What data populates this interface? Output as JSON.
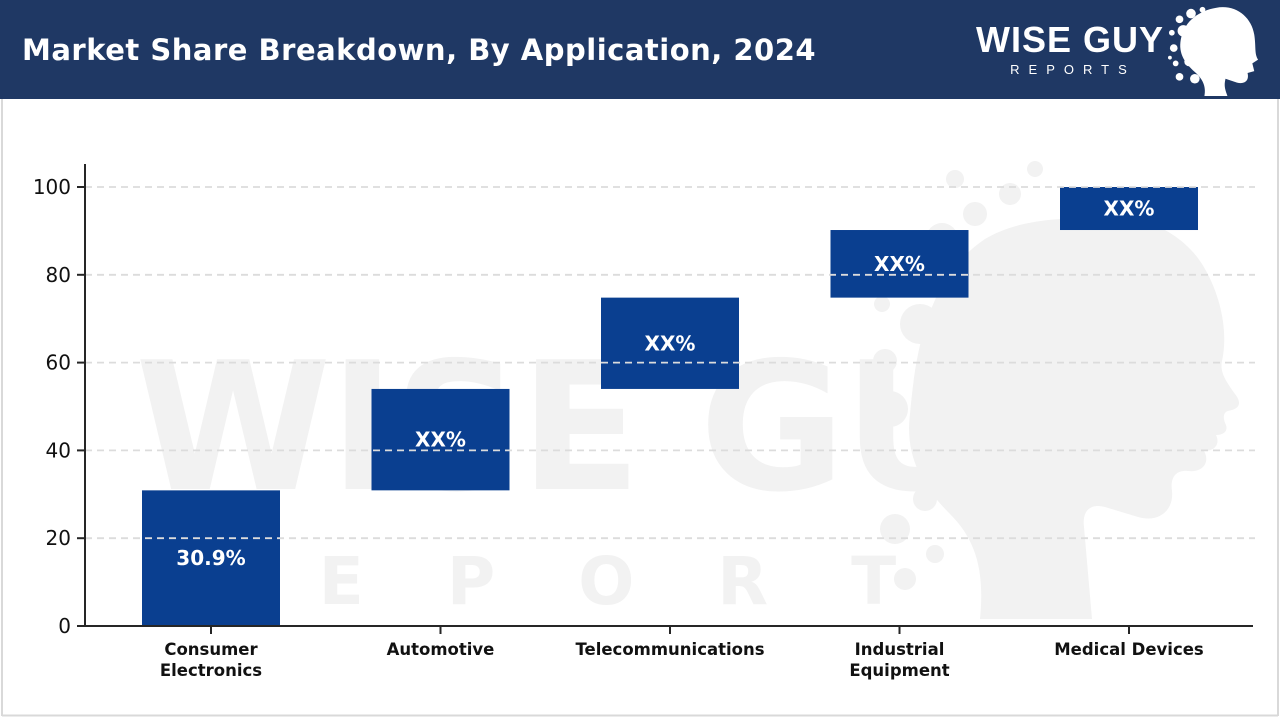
{
  "header": {
    "title": "Market Share Breakdown, By Application, 2024",
    "logo": {
      "line1": "WISE GUY",
      "line2": "REPORTS"
    }
  },
  "watermark": {
    "line1": "WISE GUY",
    "line2": "R E P O R T S"
  },
  "chart_data": {
    "type": "bar",
    "subtype": "waterfall",
    "title": "Market Share Breakdown, By Application, 2024",
    "unit": "%",
    "categories": [
      "Consumer Electronics",
      "Automotive",
      "Telecommunications",
      "Industrial Equipment",
      "Medical Devices"
    ],
    "category_label_lines": [
      [
        "Consumer",
        "Electronics"
      ],
      [
        "Automotive"
      ],
      [
        "Telecommunications"
      ],
      [
        "Industrial",
        "Equipment"
      ],
      [
        "Medical Devices"
      ]
    ],
    "series": [
      {
        "name": "Market Share",
        "segments": [
          {
            "category": "Consumer Electronics",
            "from": 0,
            "to": 30.9,
            "value": 30.9,
            "label": "30.9%"
          },
          {
            "category": "Automotive",
            "from": 30.9,
            "to": 54.0,
            "value": 23.1,
            "label": "XX%"
          },
          {
            "category": "Telecommunications",
            "from": 54.0,
            "to": 74.8,
            "value": 20.8,
            "label": "XX%"
          },
          {
            "category": "Industrial Equipment",
            "from": 74.8,
            "to": 90.2,
            "value": 15.4,
            "label": "XX%"
          },
          {
            "category": "Medical Devices",
            "from": 90.2,
            "to": 100,
            "value": 9.8,
            "label": "XX%"
          }
        ]
      }
    ],
    "yticks": [
      0,
      20,
      40,
      60,
      80,
      100
    ],
    "ylim": [
      0,
      105
    ],
    "xlabel": "",
    "ylabel": "",
    "grid": "horizontal-dashed",
    "legend": "none",
    "colors": {
      "bar": "#0a3f90",
      "bar_label": "#ffffff",
      "axis": "#262626",
      "tick_label": "#111111",
      "grid_line": "#dcdcdc",
      "header_bg": "#1f3864",
      "watermark": "#f2f2f2",
      "frame": "#d9d9d9"
    }
  }
}
